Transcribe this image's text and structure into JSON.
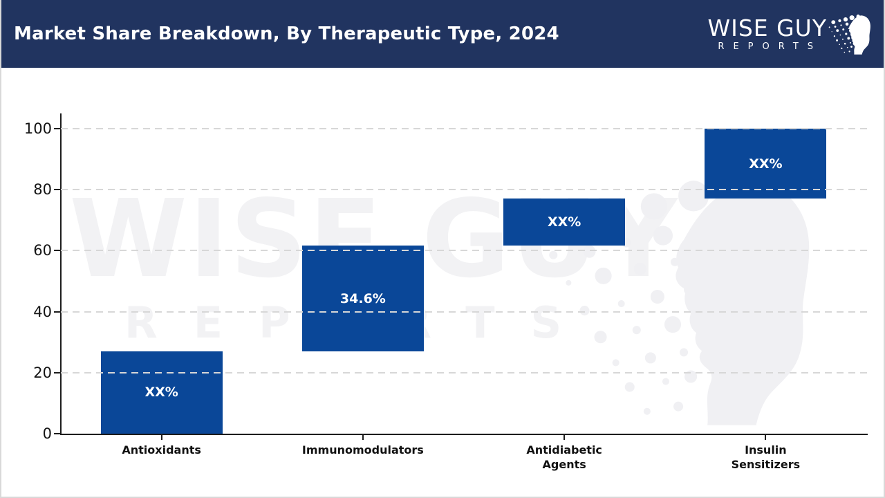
{
  "page": {
    "background": "#ffffff",
    "border_color": "#d9d9d9"
  },
  "header": {
    "bg_color": "#213460",
    "title": "Market Share Breakdown, By Therapeutic Type, 2024",
    "logo": {
      "line1": "WISE GUY",
      "line2": "REPORTS"
    }
  },
  "watermark": {
    "line1": "WISE GUY",
    "line2": "REPORTS"
  },
  "chart_data": {
    "type": "bar",
    "subtype": "waterfall",
    "title": "Market Share Breakdown, By Therapeutic Type, 2024",
    "categories": [
      "Antioxidants",
      "Immunomodulators",
      "Antidiabetic Agents",
      "Insulin Sensitizers"
    ],
    "category_lines": [
      [
        "Antioxidants"
      ],
      [
        "Immunomodulators"
      ],
      [
        "Antidiabetic",
        "Agents"
      ],
      [
        "Insulin",
        "Sensitizers"
      ]
    ],
    "bars": [
      {
        "category": "Antioxidants",
        "start": 0,
        "end": 27,
        "label": "XX%"
      },
      {
        "category": "Immunomodulators",
        "start": 27,
        "end": 61.6,
        "label": "34.6%",
        "value": 34.6
      },
      {
        "category": "Antidiabetic Agents",
        "start": 61.6,
        "end": 77,
        "label": "XX%"
      },
      {
        "category": "Insulin Sensitizers",
        "start": 77,
        "end": 100,
        "label": "XX%"
      }
    ],
    "xlabel": "",
    "ylabel": "",
    "yticks": [
      0,
      20,
      40,
      60,
      80,
      100
    ],
    "ylim": [
      0,
      105
    ],
    "grid": "horizontal-dashed, drawn above bars",
    "legend": "none",
    "bar_color": "#0a4798",
    "bar_label_color": "#ffffff",
    "axis_color": "#1c1c1c",
    "grid_color": "#d7d7d7"
  }
}
